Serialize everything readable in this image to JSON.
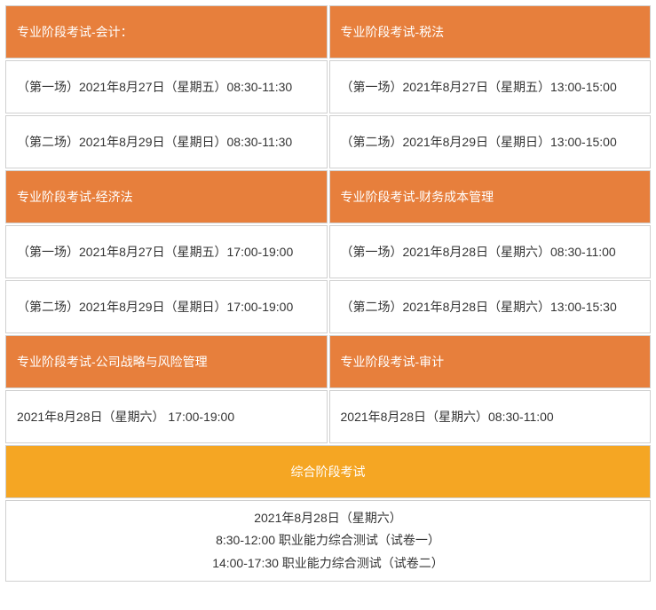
{
  "sections": [
    {
      "left_header": "专业阶段考试-会计：",
      "right_header": "专业阶段考试-税法",
      "rows": [
        {
          "left": "（第一场）2021年8月27日（星期五）08:30-11:30",
          "right": "（第一场）2021年8月27日（星期五）13:00-15:00"
        },
        {
          "left": "（第二场）2021年8月29日（星期日）08:30-11:30",
          "right": "（第二场）2021年8月29日（星期日）13:00-15:00"
        }
      ]
    },
    {
      "left_header": "专业阶段考试-经济法",
      "right_header": "专业阶段考试-财务成本管理",
      "rows": [
        {
          "left": "（第一场）2021年8月27日（星期五）17:00-19:00",
          "right": "（第一场）2021年8月28日（星期六）08:30-11:00"
        },
        {
          "left": "（第二场）2021年8月29日（星期日）17:00-19:00",
          "right": "（第二场）2021年8月28日（星期六）13:00-15:30"
        }
      ]
    },
    {
      "left_header": "专业阶段考试-公司战略与风险管理",
      "right_header": "专业阶段考试-审计",
      "rows": [
        {
          "left": "2021年8月28日（星期六） 17:00-19:00",
          "right": "2021年8月28日（星期六）08:30-11:00"
        }
      ]
    }
  ],
  "comprehensive": {
    "header": "综合阶段考试",
    "line1": "2021年8月28日（星期六）",
    "line2": "8:30-12:00 职业能力综合测试（试卷一）",
    "line3": "14:00-17:30 职业能力综合测试（试卷二）"
  },
  "colors": {
    "orange_header": "#e77f3c",
    "yellow_header": "#f5a623",
    "border": "#d0d0d0",
    "text": "#333333",
    "white": "#ffffff"
  }
}
